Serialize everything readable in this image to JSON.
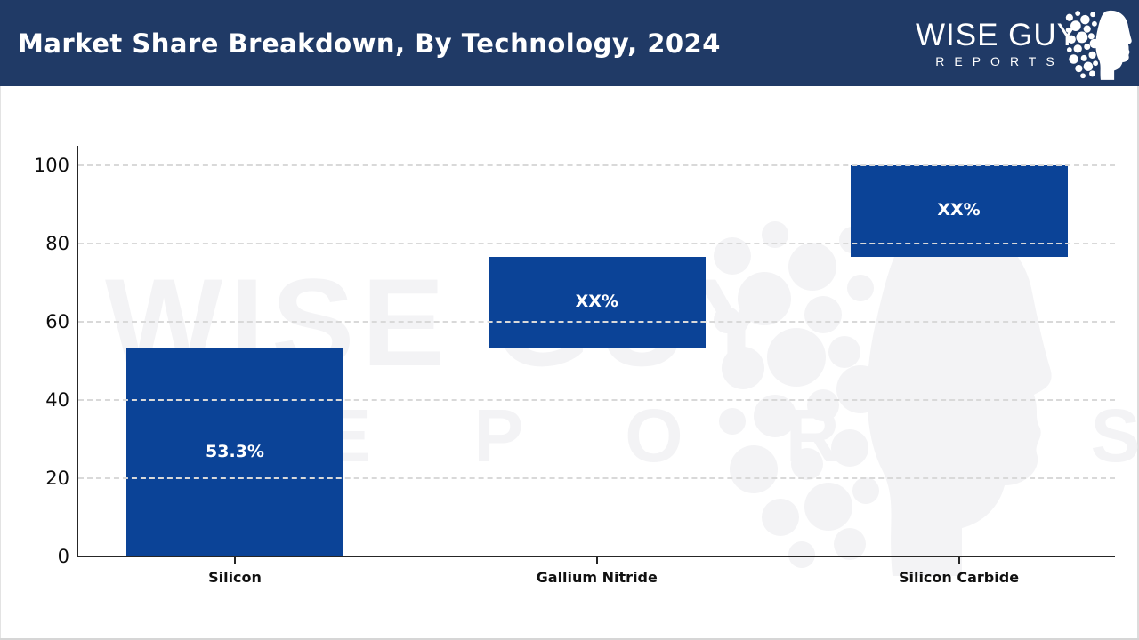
{
  "header": {
    "title": "Market Share Breakdown, By Technology, 2024",
    "bg_color": "#203a66",
    "logo": {
      "wordmark": "WISE GUY",
      "subtext": "REPORTS"
    }
  },
  "watermark": {
    "line1": "WISE GUY",
    "line2": "R E P O R T S"
  },
  "chart_data": {
    "type": "bar",
    "variant": "waterfall-stacked-percent",
    "title": "Market Share Breakdown, By Technology, 2024",
    "categories": [
      "Silicon",
      "Gallium Nitride",
      "Silicon Carbide"
    ],
    "series": [
      {
        "name": "Market share (%)",
        "segments": [
          {
            "category": "Silicon",
            "start": 0,
            "end": 53.3,
            "label": "53.3%"
          },
          {
            "category": "Gallium Nitride",
            "start": 53.3,
            "end": 76.6,
            "label": "XX%"
          },
          {
            "category": "Silicon Carbide",
            "start": 76.6,
            "end": 100,
            "label": "XX%"
          }
        ]
      }
    ],
    "yticks": [
      0,
      20,
      40,
      60,
      80,
      100
    ],
    "ylim": [
      0,
      105
    ],
    "grid": "horizontal-dashed",
    "legend": "none",
    "bar_color": "#0b4397",
    "bar_label_color": "#ffffff",
    "axis_color": "#262626",
    "gridline_color": "#d9d9d9"
  }
}
